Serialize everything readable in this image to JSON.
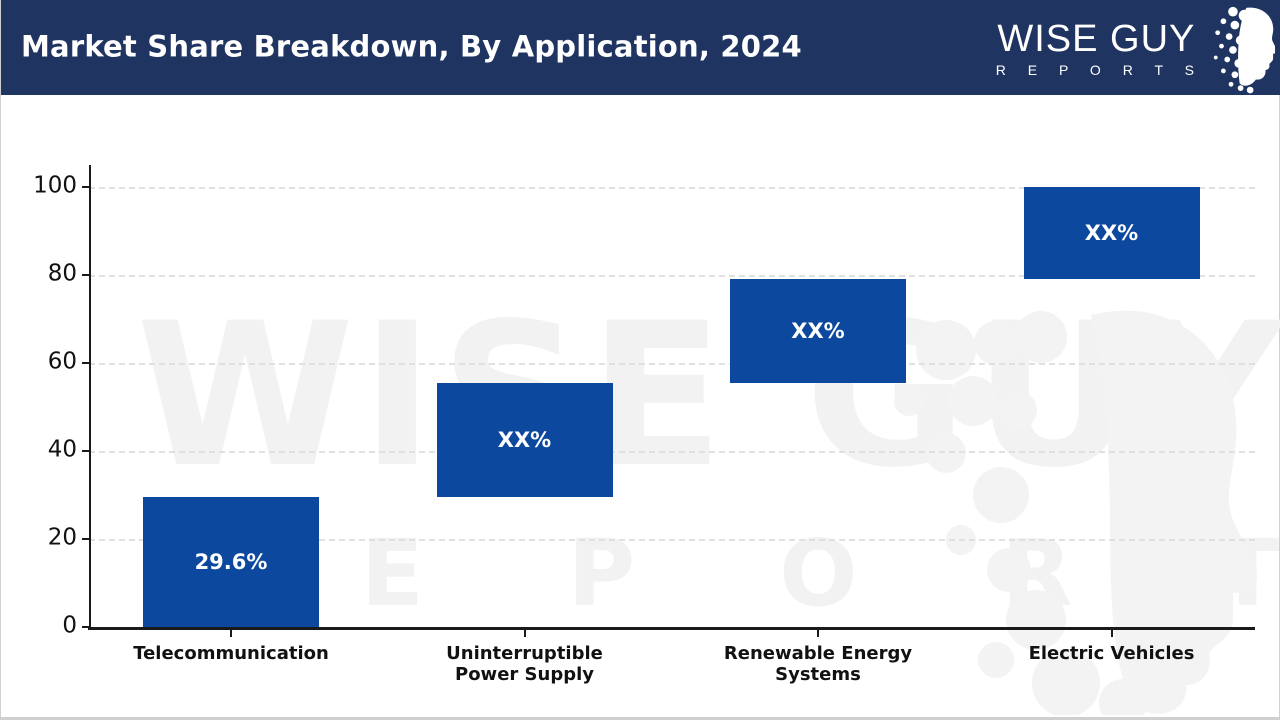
{
  "header": {
    "title": "Market Share Breakdown, By Application, 2024",
    "logo": {
      "name": "WISE GUY",
      "subname": "R E P O R T S"
    }
  },
  "watermark": {
    "line1": "WISE GUY",
    "line2": "R E P O R T S"
  },
  "chart_data": {
    "type": "bar",
    "subtype": "waterfall-floating-segments",
    "title": "Market Share Breakdown, By Application, 2024",
    "categories": [
      "Telecommunication",
      "Uninterruptible\nPower Supply",
      "Renewable Energy\nSystems",
      "Electric Vehicles"
    ],
    "series": [
      {
        "name": "Telecommunication",
        "start": 0,
        "end": 29.6,
        "label": "29.6%"
      },
      {
        "name": "Uninterruptible Power Supply",
        "start": 29.6,
        "end": 55.5,
        "label": "XX%"
      },
      {
        "name": "Renewable Energy Systems",
        "start": 55.5,
        "end": 79.2,
        "label": "XX%"
      },
      {
        "name": "Electric Vehicles",
        "start": 79.2,
        "end": 100,
        "label": "XX%"
      }
    ],
    "yticks": [
      0,
      20,
      40,
      60,
      80,
      100
    ],
    "ylim": [
      0,
      105
    ],
    "xlabel": "",
    "ylabel": "",
    "grid": "horizontal-dashed",
    "legend": "none",
    "bar_color": "#0c489d",
    "value_label_color": "#ffffff",
    "axis_color": "#1a1a1a",
    "header_bg": "#1f3461",
    "gridline_color": "#e0e0e0"
  }
}
